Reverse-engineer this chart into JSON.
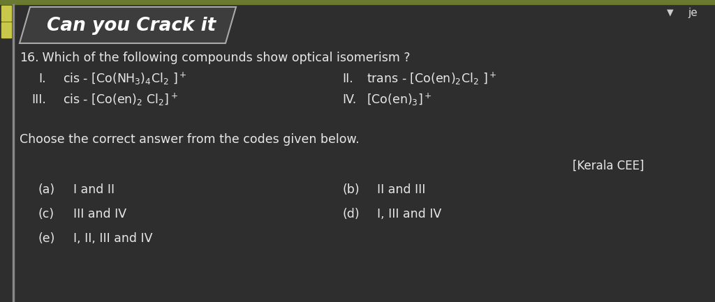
{
  "bg_color": "#2e2e2e",
  "title_text": "Can you Crack it",
  "title_bg": "#3d3d3d",
  "title_border": "#aaaaaa",
  "title_color": "#ffffff",
  "question_num": "16.",
  "question_text": " Which of the following compounds show optical isomerism ?",
  "roman_I": "I.",
  "compound_I": "cis - [Co(NH$_3$)$_4$Cl$_2$ ]$^+$",
  "roman_II": "II.",
  "compound_II": "trans - [Co(en)$_2$Cl$_2$ ]$^+$",
  "roman_III": "III.",
  "compound_III": "cis - [Co(en)$_2$ Cl$_2$]$^+$",
  "roman_IV": "IV.",
  "compound_IV": "[Co(en)$_3$]$^+$",
  "choose_text": "Choose the correct answer from the codes given below.",
  "source_text": "[Kerala CEE]",
  "opt_a_label": "(a)",
  "opt_a_text": "I and II",
  "opt_b_label": "(b)",
  "opt_b_text": "II and III",
  "opt_c_label": "(c)",
  "opt_c_text": "III and IV",
  "opt_d_label": "(d)",
  "opt_d_text": "I, III and IV",
  "opt_e_label": "(e)",
  "opt_e_text": "I, II, III and IV",
  "text_color": "#e8e8e8",
  "font_size_title": 19,
  "font_size_question": 12.5,
  "font_size_options": 12.5,
  "font_size_source": 12,
  "left_bar_color": "#c8c84a",
  "top_bar_color": "#6a7a30",
  "icon_color": "#dddddd"
}
